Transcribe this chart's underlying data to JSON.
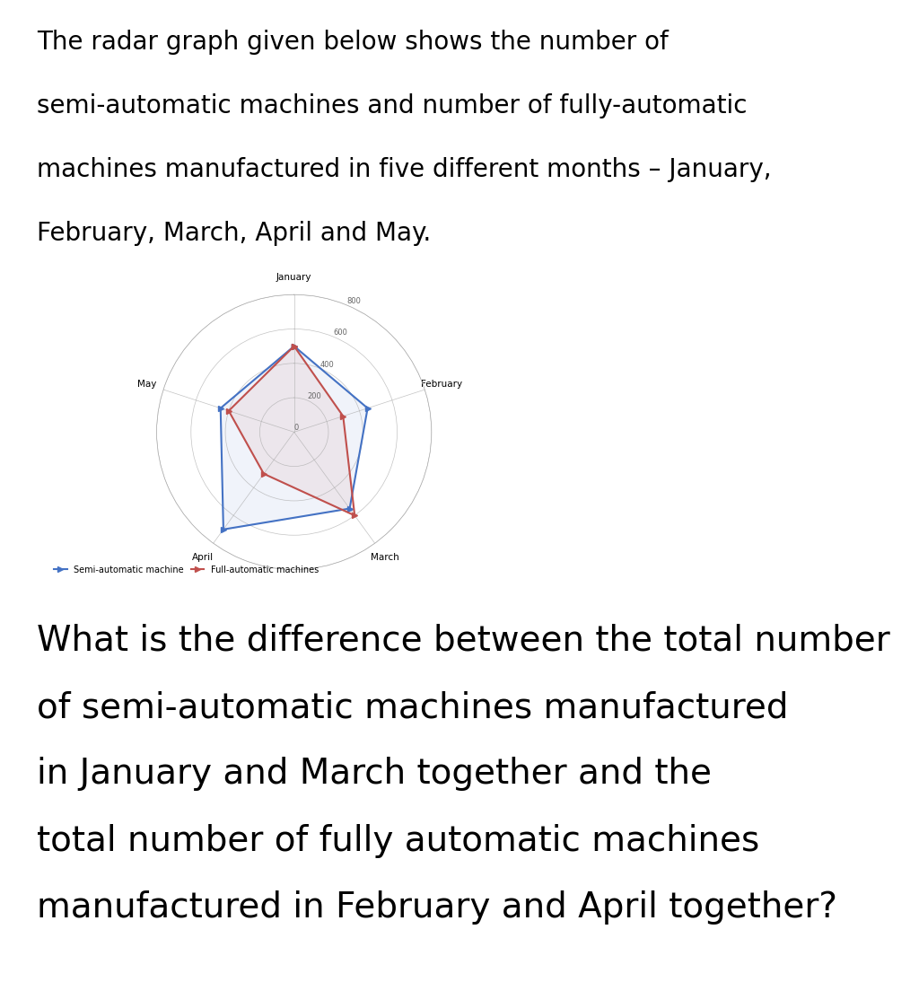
{
  "title_text_lines": [
    "The radar graph given below shows the number of",
    "semi-automatic machines and number of fully-automatic",
    "machines manufactured in five different months – January,",
    "February, March, April and May."
  ],
  "question_text_lines": [
    "What is the difference between the total number",
    "of semi-automatic machines manufactured",
    "in January and March together and the",
    "total number of fully automatic machines",
    "manufactured in February and April together?"
  ],
  "categories": [
    "January",
    "February",
    "March",
    "April",
    "May"
  ],
  "semi_auto": [
    500,
    450,
    550,
    700,
    450
  ],
  "full_auto": [
    500,
    300,
    600,
    300,
    400
  ],
  "r_max": 800,
  "r_ticks": [
    0,
    200,
    400,
    600,
    800
  ],
  "semi_color": "#4472C4",
  "full_color": "#C0504D",
  "legend_semi": "Semi-automatic machine",
  "legend_full": "Full-automatic machines",
  "background_color": "#ffffff",
  "title_fontsize": 20,
  "question_fontsize": 28
}
